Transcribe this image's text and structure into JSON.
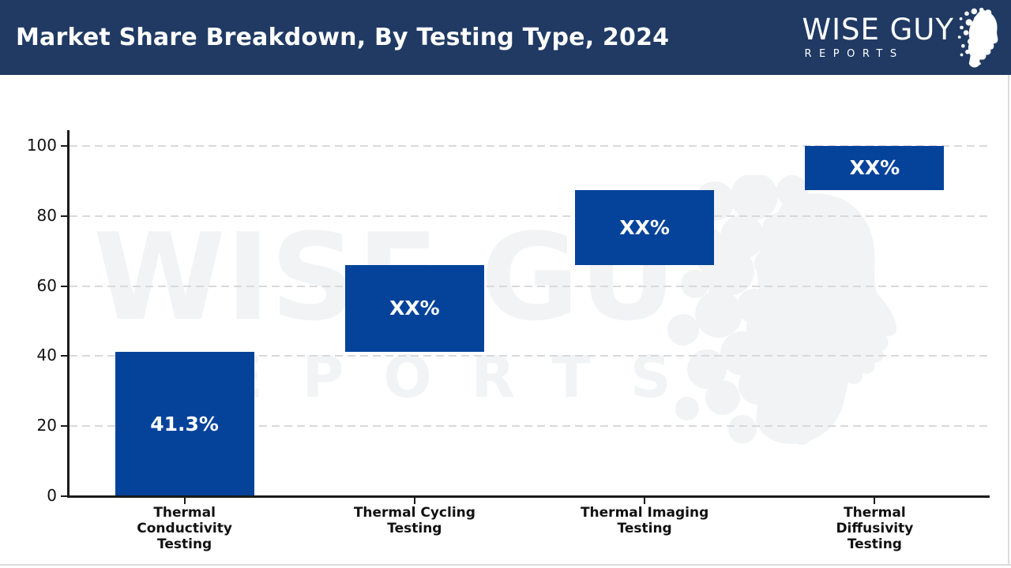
{
  "header": {
    "title": "Market Share Breakdown, By Testing Type, 2024",
    "logo": {
      "line1": "WISE GUY",
      "line2": "REPORTS"
    }
  },
  "watermark": {
    "line1": "WISE GUY",
    "line2": "REPORTS"
  },
  "chart_data": {
    "type": "bar",
    "variant": "waterfall",
    "title": "Market Share Breakdown, By Testing Type, 2024",
    "ylim": [
      0,
      100
    ],
    "yticks": [
      0,
      20,
      40,
      60,
      80,
      100
    ],
    "grid": "horizontal-dashed",
    "legend": "none",
    "categories": [
      "Thermal Conductivity Testing",
      "Thermal Cycling Testing",
      "Thermal Imaging Testing",
      "Thermal Diffusivity Testing"
    ],
    "category_lines": [
      [
        "Thermal",
        "Conductivity",
        "Testing"
      ],
      [
        "Thermal Cycling",
        "Testing"
      ],
      [
        "Thermal Imaging",
        "Testing"
      ],
      [
        "Thermal",
        "Diffusivity",
        "Testing"
      ]
    ],
    "segments": [
      {
        "category": "Thermal Conductivity Testing",
        "start": 0,
        "end": 41.3,
        "label": "41.3%"
      },
      {
        "category": "Thermal Cycling Testing",
        "start": 41.3,
        "end": 66,
        "label": "XX%"
      },
      {
        "category": "Thermal Imaging Testing",
        "start": 66,
        "end": 87.5,
        "label": "XX%"
      },
      {
        "category": "Thermal Diffusivity Testing",
        "start": 87.5,
        "end": 100,
        "label": "XX%"
      }
    ]
  },
  "colors": {
    "header_bg": "#203a64",
    "bar": "#05439b",
    "bar_label": "#ffffff",
    "grid": "#d9d9d9",
    "axis": "#1a1a1a",
    "watermark": "#f2f3f5",
    "frame": "#dcdcdc"
  }
}
